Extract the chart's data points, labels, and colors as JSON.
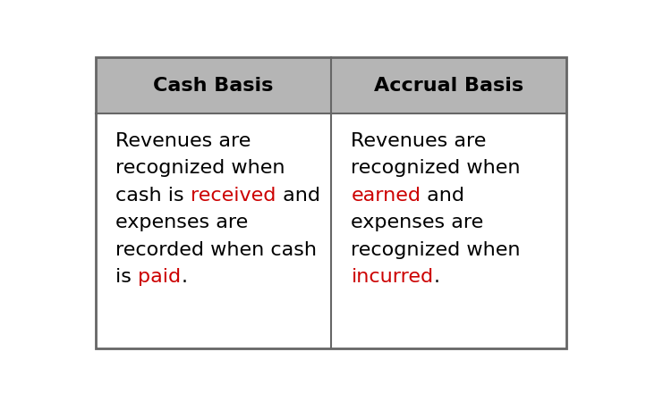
{
  "header_bg_color": "#b5b5b5",
  "body_bg_color": "#ffffff",
  "border_color": "#666666",
  "header_text_color": "#000000",
  "body_text_color": "#000000",
  "highlight_color": "#cc0000",
  "col1_header": "Cash Basis",
  "col2_header": "Accrual Basis",
  "col1_lines": [
    [
      {
        "text": "Revenues are",
        "color": "#000000"
      }
    ],
    [
      {
        "text": "recognized when",
        "color": "#000000"
      }
    ],
    [
      {
        "text": "cash is ",
        "color": "#000000"
      },
      {
        "text": "received",
        "color": "#cc0000"
      },
      {
        "text": " and",
        "color": "#000000"
      }
    ],
    [
      {
        "text": "expenses are",
        "color": "#000000"
      }
    ],
    [
      {
        "text": "recorded when cash",
        "color": "#000000"
      }
    ],
    [
      {
        "text": "is ",
        "color": "#000000"
      },
      {
        "text": "paid",
        "color": "#cc0000"
      },
      {
        "text": ".",
        "color": "#000000"
      }
    ]
  ],
  "col2_lines": [
    [
      {
        "text": "Revenues are",
        "color": "#000000"
      }
    ],
    [
      {
        "text": "recognized when",
        "color": "#000000"
      }
    ],
    [
      {
        "text": "earned",
        "color": "#cc0000"
      },
      {
        "text": " and",
        "color": "#000000"
      }
    ],
    [
      {
        "text": "expenses are",
        "color": "#000000"
      }
    ],
    [
      {
        "text": "recognized when",
        "color": "#000000"
      }
    ],
    [
      {
        "text": "incurred",
        "color": "#cc0000"
      },
      {
        "text": ".",
        "color": "#000000"
      }
    ]
  ],
  "figsize": [
    7.22,
    4.5
  ],
  "dpi": 100,
  "header_fontsize": 16,
  "body_fontsize": 16,
  "outer_border_lw": 2.0,
  "inner_border_lw": 1.5
}
